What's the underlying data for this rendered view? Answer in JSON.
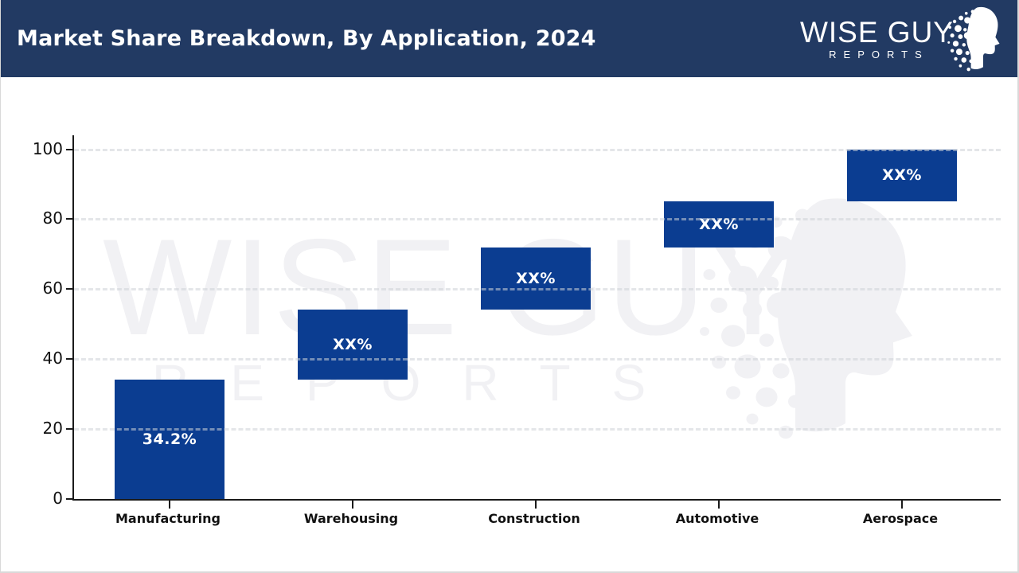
{
  "header": {
    "title": "Market Share Breakdown, By Application, 2024",
    "logo": {
      "line1": "WISE GUY",
      "line2": "REPORTS"
    }
  },
  "watermark": {
    "line1": "WISE GUY",
    "line2": "REPORTS"
  },
  "colors": {
    "header_bg": "#223a63",
    "bar": "#0b3d91",
    "bar_label": "#ffffff",
    "axis": "#1a1a1a",
    "grid": "#d0d2d6",
    "watermark": "#f1f1f4",
    "title_text": "#ffffff"
  },
  "chart_data": {
    "type": "bar",
    "subtype": "waterfall",
    "title": "Market Share Breakdown, By Application, 2024",
    "categories": [
      "Manufacturing",
      "Warehousing",
      "Construction",
      "Automotive",
      "Aerospace"
    ],
    "segments": [
      {
        "category": "Manufacturing",
        "start": 0,
        "end": 34.2,
        "value": 34.2,
        "label": "34.2%"
      },
      {
        "category": "Warehousing",
        "start": 34.2,
        "end": 54.2,
        "value": 20.0,
        "label": "XX%"
      },
      {
        "category": "Construction",
        "start": 54.2,
        "end": 72.0,
        "value": 17.8,
        "label": "XX%"
      },
      {
        "category": "Automotive",
        "start": 72.0,
        "end": 85.2,
        "value": 13.2,
        "label": "XX%"
      },
      {
        "category": "Aerospace",
        "start": 85.2,
        "end": 100,
        "value": 14.8,
        "label": "XX%"
      }
    ],
    "y_ticks": [
      0,
      20,
      40,
      60,
      80,
      100
    ],
    "ylim": [
      0,
      104
    ],
    "xlabel": "",
    "ylabel": "",
    "grid": "horizontal-dashed",
    "legend": "none",
    "bar_color": "#0b3d91"
  }
}
